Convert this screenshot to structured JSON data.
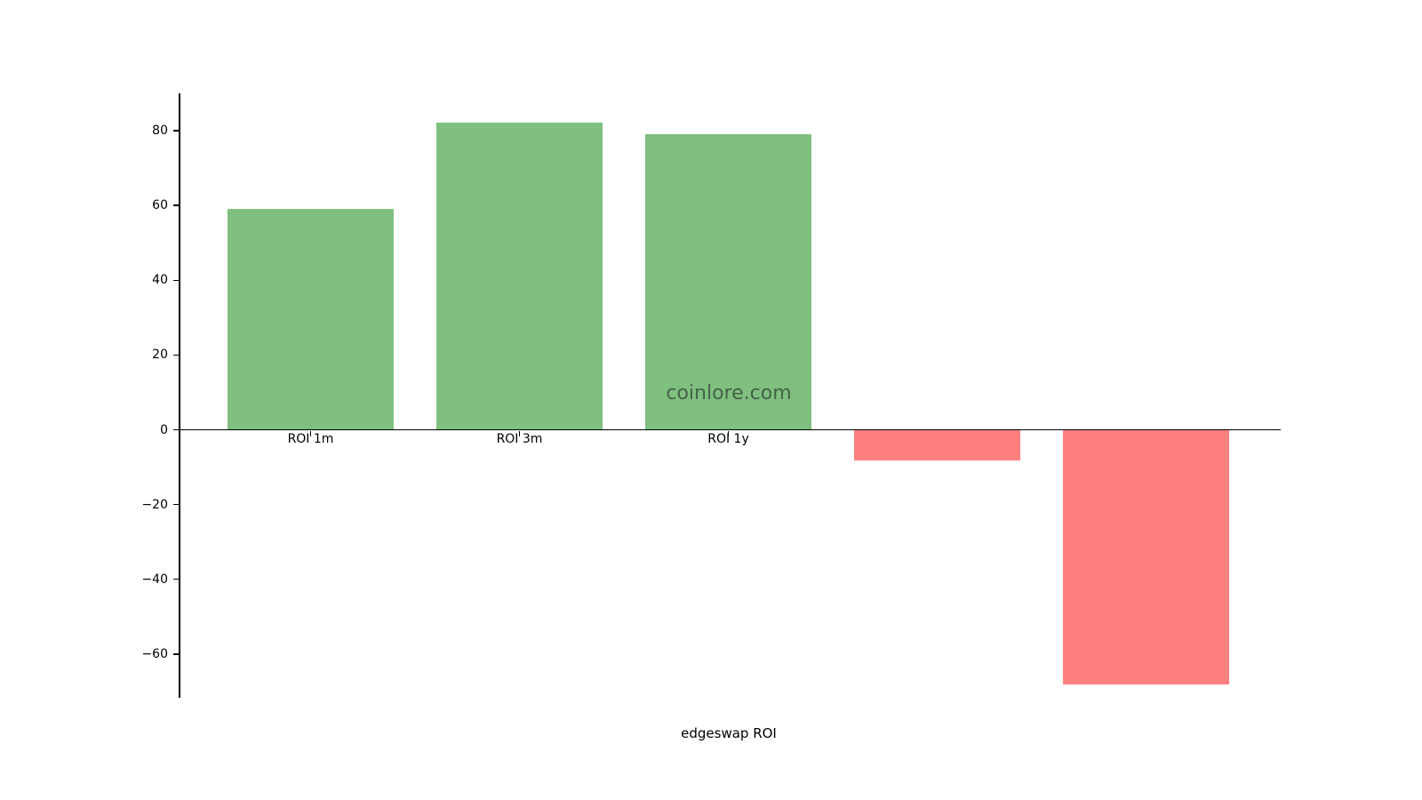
{
  "page": {
    "background": "#ffffff"
  },
  "watermark": {
    "text": "coinlore.com",
    "color": "#456349"
  },
  "chart_data": {
    "type": "bar",
    "categories": [
      "ROI 1m",
      "ROI 3m",
      "ROI 1y",
      "",
      ""
    ],
    "values": [
      59,
      82,
      79,
      -8,
      -68
    ],
    "title": "",
    "xlabel": "edgeswap ROI",
    "ylabel": "",
    "ylim": [
      -72,
      90
    ],
    "yticks": [
      80,
      60,
      40,
      20,
      0,
      -20,
      -40,
      -60
    ],
    "grid": false,
    "legend": null,
    "positive_color": "#7fbf7f",
    "negative_color": "#ff7f7f",
    "axis_color": "#000000"
  }
}
